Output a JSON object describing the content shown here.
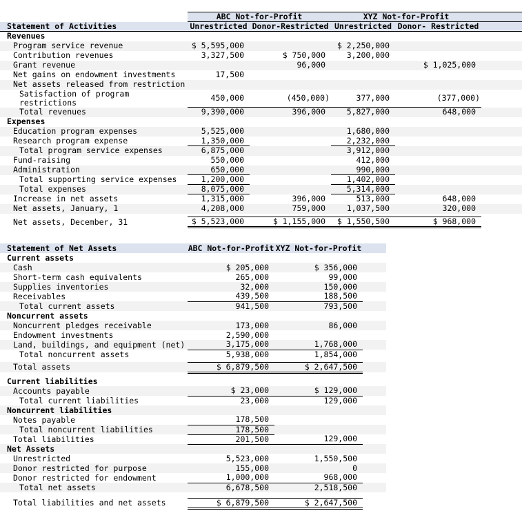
{
  "colors": {
    "header_bg": "#dde3ee",
    "stripe_bg": "#f2f2f2",
    "border": "#000000",
    "text": "#000000"
  },
  "activities": {
    "title": "Statement of Activities",
    "groups": [
      {
        "label": "ABC Not-for-Profit"
      },
      {
        "label": "XYZ Not-for-Profit"
      }
    ],
    "columns": [
      "Unrestricted",
      "Donor-Restricted",
      "Unrestricted",
      "Donor- Restricted"
    ],
    "rows": [
      {
        "label": "Revenues",
        "section": true,
        "indent": 0,
        "v": [
          "",
          "",
          "",
          ""
        ]
      },
      {
        "label": "Program service revenue",
        "indent": 1,
        "v": [
          "$ 5,595,000",
          "",
          "$ 2,250,000",
          ""
        ]
      },
      {
        "label": "Contribution revenues",
        "indent": 1,
        "v": [
          "3,327,500",
          "$ 750,000",
          "3,200,000",
          ""
        ]
      },
      {
        "label": "Grant revenue",
        "indent": 1,
        "v": [
          "",
          "96,000",
          "",
          "$ 1,025,000"
        ]
      },
      {
        "label": "Net gains on endowment investments",
        "indent": 1,
        "v": [
          "17,500",
          "",
          "",
          ""
        ]
      },
      {
        "label": "Net assets released from restriction",
        "indent": 1,
        "v": [
          "",
          "",
          "",
          ""
        ]
      },
      {
        "label": "Satisfaction of program restrictions",
        "indent": 2,
        "wrap": true,
        "v": [
          "450,000",
          "(450,000)",
          "377,000",
          "(377,000)"
        ]
      },
      {
        "label": "Total revenues",
        "indent": 2,
        "v": [
          "9,390,000",
          "396,000",
          "5,827,000",
          "648,000"
        ],
        "topline": [
          0,
          1,
          2,
          3
        ]
      },
      {
        "label": "Expenses",
        "section": true,
        "indent": 0,
        "v": [
          "",
          "",
          "",
          ""
        ]
      },
      {
        "label": "Education program expenses",
        "indent": 1,
        "v": [
          "5,525,000",
          "",
          "1,680,000",
          ""
        ]
      },
      {
        "label": "Research program expense",
        "indent": 1,
        "v": [
          "1,350,000",
          "",
          "2,232,000",
          ""
        ]
      },
      {
        "label": "Total program service expenses",
        "indent": 2,
        "v": [
          "6,875,000",
          "",
          "3,912,000",
          ""
        ],
        "topline": [
          0,
          2
        ]
      },
      {
        "label": "Fund-raising",
        "indent": 1,
        "v": [
          "550,000",
          "",
          "412,000",
          ""
        ]
      },
      {
        "label": "Administration",
        "indent": 1,
        "v": [
          "650,000",
          "",
          "990,000",
          ""
        ]
      },
      {
        "label": "Total supporting service expenses",
        "indent": 2,
        "v": [
          "1,200,000",
          "",
          "1,402,000",
          ""
        ],
        "topline": [
          0,
          2
        ]
      },
      {
        "label": "Total expenses",
        "indent": 2,
        "v": [
          "8,075,000",
          "",
          "5,314,000",
          ""
        ],
        "topline": [
          0,
          2
        ]
      },
      {
        "label": "Increase in net assets",
        "indent": 1,
        "v": [
          "1,315,000",
          "396,000",
          "513,000",
          "648,000"
        ],
        "topline": [
          0,
          2
        ]
      },
      {
        "label": "Net assets, January, 1",
        "indent": 1,
        "v": [
          "4,208,000",
          "759,000",
          "1,037,500",
          "320,000"
        ]
      },
      {
        "spacer": true,
        "h": 5
      },
      {
        "label": "Net assets, December, 31",
        "indent": 1,
        "v": [
          "$ 5,523,000",
          "$ 1,155,000",
          "$ 1,550,500",
          "$ 968,000"
        ],
        "topline": [
          0,
          1,
          2,
          3
        ],
        "dbl": [
          0,
          1,
          2,
          3
        ]
      }
    ]
  },
  "net_assets": {
    "title": "Statement of Net Assets",
    "columns": [
      "ABC Not-for-Profit",
      "XYZ Not-for-Profit"
    ],
    "rows": [
      {
        "label": "Current assets",
        "section": true,
        "indent": 0,
        "v": [
          "",
          ""
        ]
      },
      {
        "label": "Cash",
        "indent": 1,
        "v": [
          "$ 205,000",
          "$ 356,000"
        ]
      },
      {
        "label": "Short-term cash equivalents",
        "indent": 1,
        "v": [
          "265,000",
          "99,000"
        ]
      },
      {
        "label": "Supplies inventories",
        "indent": 1,
        "v": [
          "32,000",
          "150,000"
        ]
      },
      {
        "label": "Receivables",
        "indent": 1,
        "v": [
          "439,500",
          "188,500"
        ]
      },
      {
        "label": "Total current assets",
        "indent": 2,
        "v": [
          "941,500",
          "793,500"
        ],
        "topline": [
          0,
          1
        ]
      },
      {
        "label": "Noncurrent assets",
        "section": true,
        "indent": 0,
        "v": [
          "",
          ""
        ]
      },
      {
        "label": "Noncurrent pledges receivable",
        "indent": 1,
        "v": [
          "173,000",
          "86,000"
        ]
      },
      {
        "label": "Endowment investments",
        "indent": 1,
        "v": [
          "2,590,000",
          ""
        ]
      },
      {
        "label": "Land, buildings, and equipment (net)",
        "indent": 1,
        "v": [
          "3,175,000",
          "1,768,000"
        ]
      },
      {
        "label": "Total noncurrent assets",
        "indent": 2,
        "v": [
          "5,938,000",
          "1,854,000"
        ],
        "topline": [
          0,
          1
        ]
      },
      {
        "spacer": true,
        "h": 4
      },
      {
        "label": "Total assets",
        "indent": 1,
        "v": [
          "$ 6,879,500",
          "$ 2,647,500"
        ],
        "topline": [
          0,
          1
        ],
        "dbl": [
          0,
          1
        ]
      },
      {
        "spacer": true,
        "h": 6
      },
      {
        "label": "Current liabilities",
        "section": true,
        "indent": 0,
        "v": [
          "",
          ""
        ]
      },
      {
        "label": "Accounts payable",
        "indent": 1,
        "v": [
          "$ 23,000",
          "$ 129,000"
        ]
      },
      {
        "label": "Total current liabilities",
        "indent": 2,
        "v": [
          "23,000",
          "129,000"
        ],
        "topline": [
          0,
          1
        ]
      },
      {
        "label": "Noncurrent liabilities",
        "section": true,
        "indent": 0,
        "v": [
          "",
          ""
        ]
      },
      {
        "label": "Notes payable",
        "indent": 1,
        "v": [
          "178,500",
          ""
        ]
      },
      {
        "label": "Total noncurrent liabilities",
        "indent": 2,
        "v": [
          "178,500",
          ""
        ],
        "topline": [
          0
        ]
      },
      {
        "label": "Total liabilities",
        "indent": 1,
        "v": [
          "201,500",
          "129,000"
        ],
        "topline": [
          0
        ],
        "bottomline": [
          0,
          1
        ]
      },
      {
        "label": "Net Assets",
        "section": true,
        "indent": 0,
        "v": [
          "",
          ""
        ]
      },
      {
        "label": "Unrestricted",
        "indent": 1,
        "v": [
          "5,523,000",
          "1,550,500"
        ]
      },
      {
        "label": "Donor restricted for purpose",
        "indent": 1,
        "v": [
          "155,000",
          "0"
        ]
      },
      {
        "label": "Donor restricted for endowment",
        "indent": 1,
        "v": [
          "1,000,000",
          "968,000"
        ]
      },
      {
        "label": "Total net assets",
        "indent": 2,
        "v": [
          "6,678,500",
          "2,518,500"
        ],
        "topline": [
          0,
          1
        ]
      },
      {
        "spacer": true,
        "h": 8
      },
      {
        "label": "Total liabilities and net assets",
        "indent": 1,
        "v": [
          "$ 6,879,500",
          "$ 2,647,500"
        ],
        "topline": [
          0,
          1
        ],
        "dbl": [
          0,
          1
        ]
      }
    ]
  }
}
